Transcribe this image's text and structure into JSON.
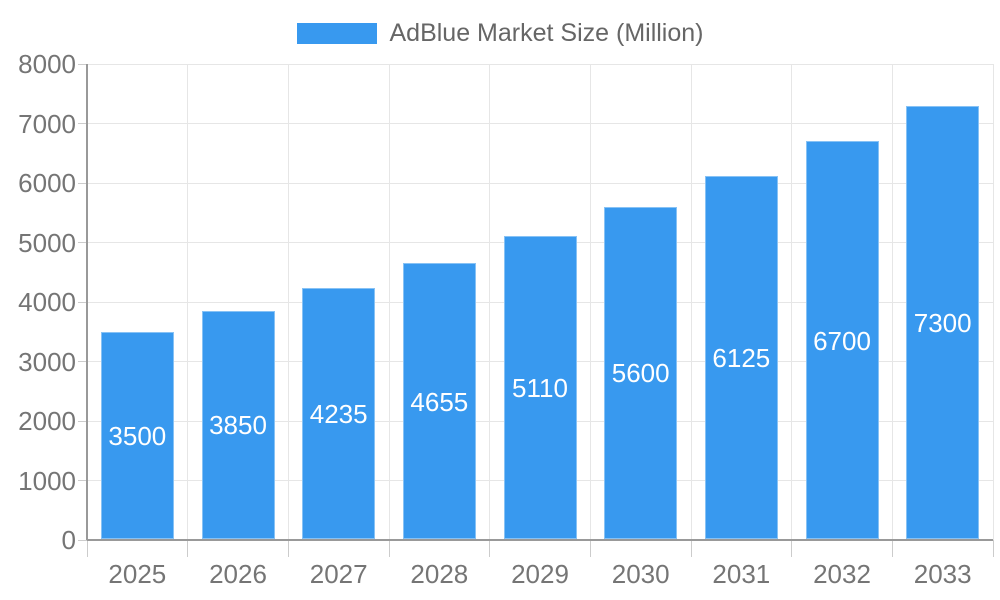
{
  "chart_data": {
    "type": "bar",
    "title": "AdBlue Market Size (Million)",
    "legend": [
      "AdBlue Market Size (Million)"
    ],
    "legend_position": "top",
    "categories": [
      "2025",
      "2026",
      "2027",
      "2028",
      "2029",
      "2030",
      "2031",
      "2032",
      "2033"
    ],
    "values": [
      3500,
      3850,
      4235,
      4655,
      5110,
      5600,
      6125,
      6700,
      7300
    ],
    "xlabel": "",
    "ylabel": "",
    "ylim": [
      0,
      8000
    ],
    "ytick_step": 1000,
    "grid": true,
    "colors": {
      "bar": "#3899EF",
      "bar_label": "#FFFFFF",
      "axis_text": "#757575",
      "legend_text": "#666666",
      "grid_line": "#E6E6E6",
      "axis_line": "#999999",
      "tick": "#CCCCCC"
    }
  }
}
